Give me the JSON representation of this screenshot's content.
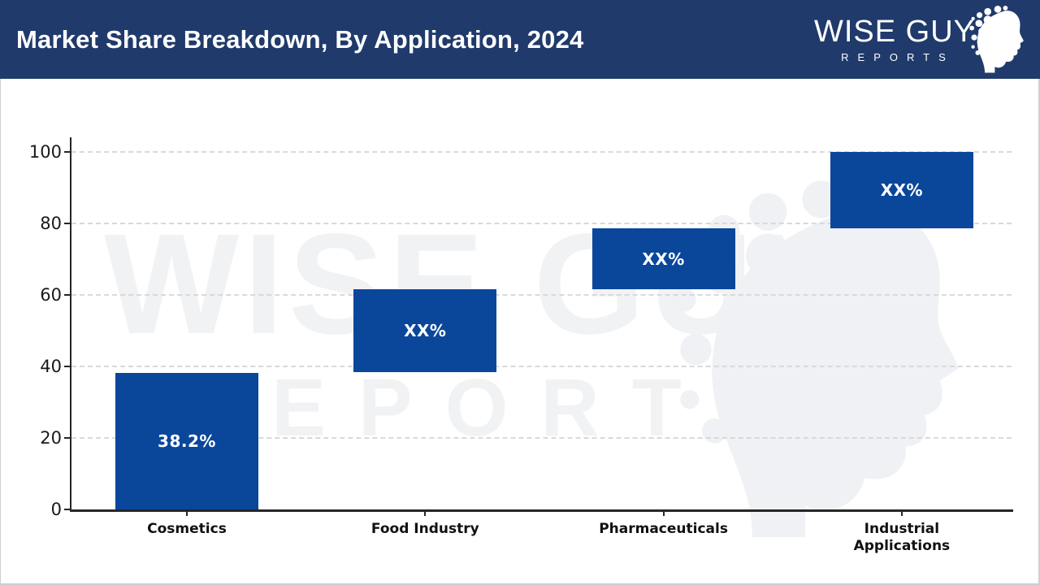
{
  "header": {
    "title": "Market Share Breakdown, By Application, 2024",
    "bg_color": "#203a6b",
    "logo": {
      "line1": "WISE GUY",
      "line2": "REPORTS"
    }
  },
  "watermark": {
    "line1": "WISE GUY",
    "line2": "REPORTS"
  },
  "chart_data": {
    "type": "bar",
    "subtype": "waterfall",
    "title": "Market Share Breakdown, By Application, 2024",
    "unit": "%",
    "categories": [
      "Cosmetics",
      "Food Industry",
      "Pharmaceuticals",
      "Industrial Applications"
    ],
    "segments": [
      {
        "category": "Cosmetics",
        "label": "38.2%",
        "start": 0,
        "end": 38.2
      },
      {
        "category": "Food Industry",
        "label": "XX%",
        "start": 38.4,
        "end": 61.6
      },
      {
        "category": "Pharmaceuticals",
        "label": "XX%",
        "start": 61.6,
        "end": 78.6
      },
      {
        "category": "Industrial Applications",
        "label": "XX%",
        "start": 78.6,
        "end": 100
      }
    ],
    "bar_labels": [
      "38.2%",
      "XX%",
      "XX%",
      "XX%"
    ],
    "y_ticks": [
      0,
      20,
      40,
      60,
      80,
      100
    ],
    "ylim": [
      0,
      104
    ],
    "grid": {
      "horizontal": true,
      "style": "dashed",
      "color": "#d9d9d9"
    },
    "legend": "none",
    "bar_color": "#0a479b",
    "bar_label_color": "#ffffff",
    "axis_color": "#262626",
    "xlabel": "",
    "ylabel": ""
  }
}
